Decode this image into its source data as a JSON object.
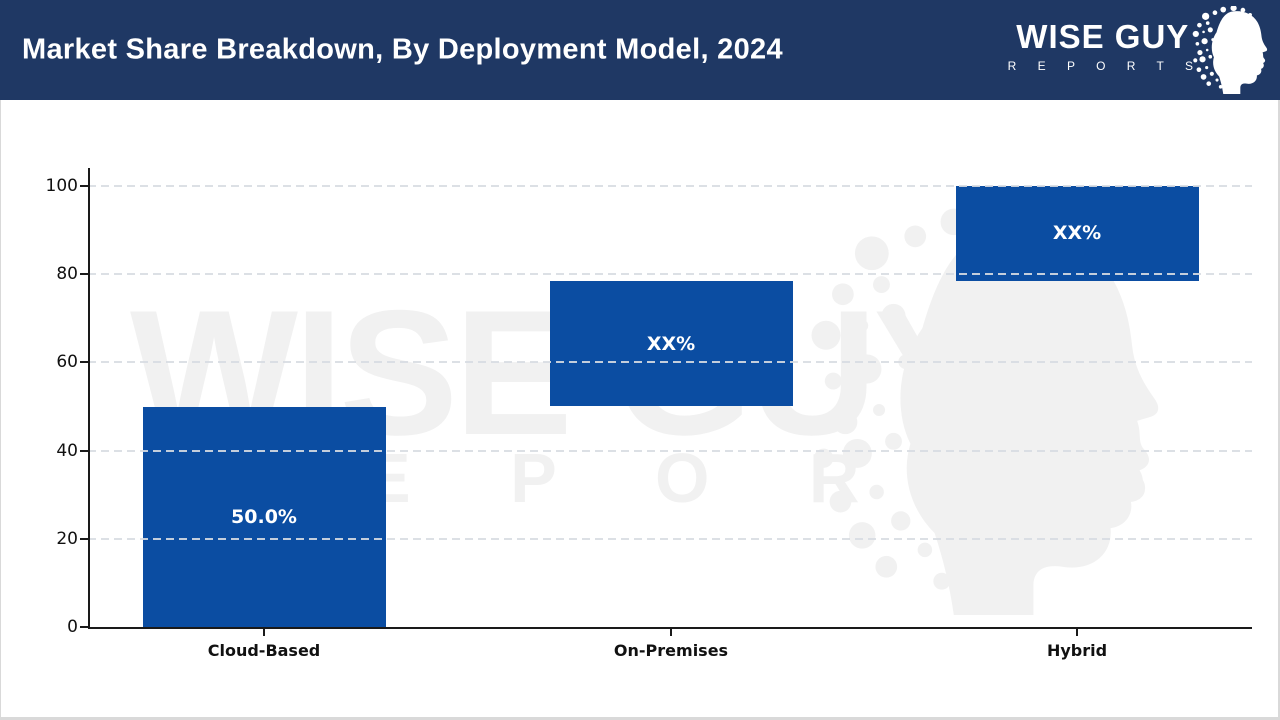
{
  "header": {
    "title": "Market Share Breakdown, By Deployment Model, 2024",
    "logo": {
      "line1": "WISE GUY",
      "line2": "R E P O R T S"
    }
  },
  "watermark": {
    "line1": "WISE GUY",
    "line2": "R E P O R T S"
  },
  "chart_data": {
    "type": "bar",
    "subtype": "waterfall",
    "title": "Market Share Breakdown, By Deployment Model, 2024",
    "categories": [
      "Cloud-Based",
      "On-Premises",
      "Hybrid"
    ],
    "series": [
      {
        "name": "Market Share",
        "segments": [
          {
            "category": "Cloud-Based",
            "start": 0,
            "end": 50,
            "label": "50.0%"
          },
          {
            "category": "On-Premises",
            "start": 50,
            "end": 78.5,
            "label": "XX%"
          },
          {
            "category": "Hybrid",
            "start": 78.5,
            "end": 100,
            "label": "XX%"
          }
        ]
      }
    ],
    "xlabel": "",
    "ylabel": "",
    "ylim": [
      0,
      100
    ],
    "yticks": [
      0,
      20,
      40,
      60,
      80,
      100
    ],
    "grid": "horizontal-dashed",
    "legend": "none",
    "bar_color": "#0B4DA2",
    "bar_label_color": "#FFFFFF"
  },
  "colors": {
    "header_bg": "#1F3864",
    "bar": "#0B4DA2",
    "grid": "#D8DCE2",
    "axis": "#1A1A1A",
    "watermark": "#F1F1F1",
    "frame_border": "#D9D9D9",
    "tick_text": "#111111",
    "title_text": "#FFFFFF"
  }
}
